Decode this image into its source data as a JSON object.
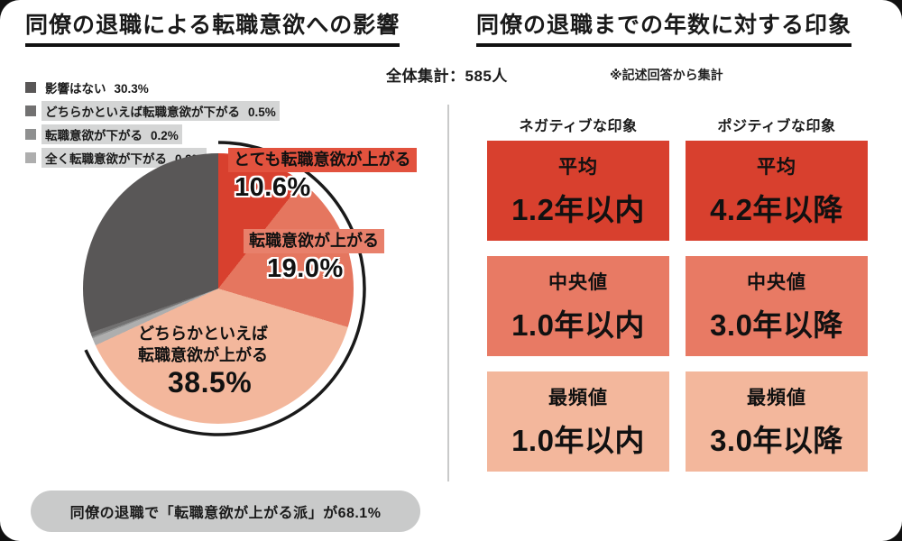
{
  "page": {
    "total_label": "全体集計：585人",
    "note": "※記述回答から集計"
  },
  "left": {
    "title": "同僚の退職による転職意欲への影響",
    "legend": [
      {
        "label": "影響はない",
        "value": "30.3%",
        "color": "#595757"
      },
      {
        "label": "どちらかといえば転職意欲が下がる",
        "value": "0.5%",
        "color": "#727171"
      },
      {
        "label": "転職意欲が下がる",
        "value": "0.2%",
        "color": "#8f9090"
      },
      {
        "label": "全く転職意欲が下がる",
        "value": "0.9%",
        "color": "#aeaeae"
      }
    ],
    "labels": {
      "top_chip": "とても転職意欲が上がる",
      "top_value": "10.6%",
      "mid_chip": "転職意欲が上がる",
      "mid_value": "19.0%",
      "bottom_line1": "どちらかといえば",
      "bottom_line2": "転職意欲が上がる",
      "bottom_value": "38.5%"
    },
    "chip_colors": {
      "top": "#e2523e",
      "mid": "#e8806b"
    },
    "summary": "同僚の退職で「転職意欲が上がる派」が68.1%"
  },
  "right": {
    "title": "同僚の退職までの年数に対する印象",
    "columns": [
      {
        "header": "ネガティブな印象",
        "boxes": [
          {
            "label": "平均",
            "value": "1.2年以内"
          },
          {
            "label": "中央値",
            "value": "1.0年以内"
          },
          {
            "label": "最頻値",
            "value": "1.0年以内"
          }
        ]
      },
      {
        "header": "ポジティブな印象",
        "boxes": [
          {
            "label": "平均",
            "value": "4.2年以降"
          },
          {
            "label": "中央値",
            "value": "3.0年以降"
          },
          {
            "label": "最頻値",
            "value": "3.0年以降"
          }
        ]
      }
    ],
    "row_colors": [
      "#d8402e",
      "#e87a64",
      "#f3b79c"
    ]
  },
  "chart_data": {
    "type": "pie",
    "title": "同僚の退職による転職意欲への影響",
    "total_label": "全体集計：585人",
    "start_angle_deg": 0,
    "direction": "clockwise",
    "legend_position": "top-left",
    "segments": [
      {
        "label": "とても転職意欲が上がる",
        "value": 10.6,
        "color": "#d8402e"
      },
      {
        "label": "転職意欲が上がる",
        "value": 19.0,
        "color": "#e5765f"
      },
      {
        "label": "どちらかといえば転職意欲が上がる",
        "value": 38.5,
        "color": "#f3b79c"
      },
      {
        "label": "全く転職意欲が下がる",
        "value": 0.9,
        "color": "#aeaeae"
      },
      {
        "label": "転職意欲が下がる",
        "value": 0.2,
        "color": "#8f9090"
      },
      {
        "label": "どちらかといえば転職意欲が下がる",
        "value": 0.5,
        "color": "#727171"
      },
      {
        "label": "影響はない",
        "value": 30.3,
        "color": "#595757"
      }
    ],
    "emphasis_percent": 68.1,
    "emphasis_label": "同僚の退職で「転職意欲が上がる派」が68.1%"
  }
}
